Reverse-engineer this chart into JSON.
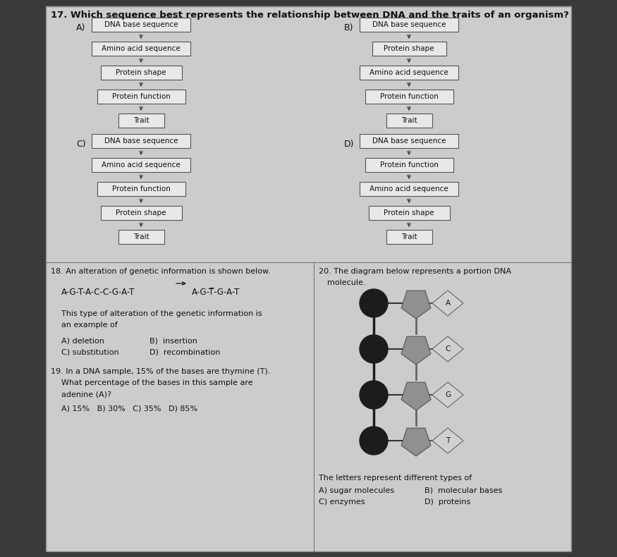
{
  "title": "17. Which sequence best represents the relationship between DNA and the traits of an organism?",
  "bg_outer": "#3a3a3a",
  "bg_inner": "#cccccc",
  "box_edge_color": "#555555",
  "text_color": "#111111",
  "arrow_color": "#333333",
  "flowcharts": {
    "A": {
      "label": "A)",
      "items": [
        "DNA base sequence",
        "Amino acid sequence",
        "Protein shape",
        "Protein function",
        "Trait"
      ]
    },
    "B": {
      "label": "B)",
      "items": [
        "DNA base sequence",
        "Protein shape",
        "Amino acid sequence",
        "Protein function",
        "Trait"
      ]
    },
    "C": {
      "label": "C)",
      "items": [
        "DNA base sequence",
        "Amino acid sequence",
        "Protein function",
        "Protein shape",
        "Trait"
      ]
    },
    "D": {
      "label": "D)",
      "items": [
        "DNA base sequence",
        "Protein function",
        "Amino acid sequence",
        "Protein shape",
        "Trait"
      ]
    }
  },
  "dna_letters": [
    "A",
    "C",
    "G",
    "T"
  ]
}
